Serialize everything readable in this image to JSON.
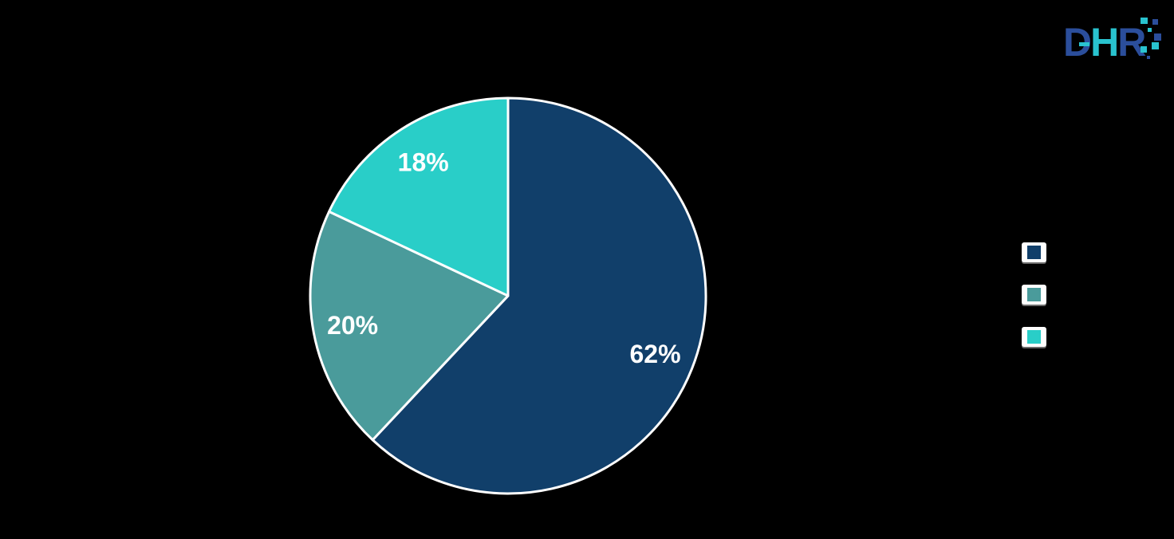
{
  "canvas": {
    "background": "#000000"
  },
  "logo": {
    "letters": {
      "d": "D",
      "h": "H",
      "r": "R"
    },
    "blue": "#2B4E9B",
    "cyan": "#29C3CF"
  },
  "chart_data": {
    "type": "pie",
    "slices": [
      {
        "label": "62%",
        "value": 62,
        "color": "#113F6A"
      },
      {
        "label": "20%",
        "value": 20,
        "color": "#4A9B9B"
      },
      {
        "label": "18%",
        "value": 18,
        "color": "#29CEC8"
      }
    ],
    "start_angle_deg": 0,
    "direction": "clockwise",
    "slice_border_color": "#FFFFFF",
    "label_color": "#FFFFFF",
    "label_radius_ratio": 0.8,
    "legend": {
      "position": "right",
      "marker_background": "#FFFFFF",
      "marker_colors": [
        "#113F6A",
        "#4A9B9B",
        "#29CEC8"
      ],
      "labels_visible": false
    }
  }
}
